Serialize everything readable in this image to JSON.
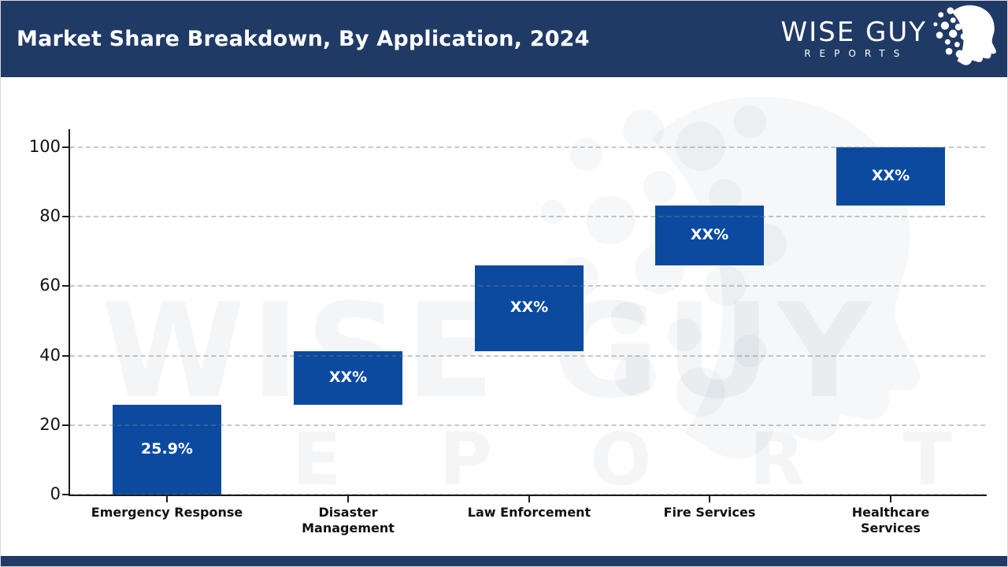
{
  "header": {
    "title": "Market Share Breakdown, By Application, 2024",
    "logo": {
      "line1": "WISE GUY",
      "line2": "REPORTS"
    }
  },
  "watermark": {
    "line1": "WISE GUY",
    "line2": "R E P O R T S"
  },
  "colors": {
    "header_bg": "#203a66",
    "bar": "#0c4aa0",
    "axis": "#1a1a1a",
    "bar_label_text": "#ffffff"
  },
  "chart_data": {
    "type": "bar",
    "subtype": "waterfall-floating-bars",
    "title": "Market Share Breakdown, By Application, 2024",
    "xlabel": "",
    "ylabel": "",
    "ylim": [
      0,
      105
    ],
    "yticks": [
      0,
      20,
      40,
      60,
      80,
      100
    ],
    "grid": "horizontal-dashed",
    "legend": "none",
    "bar_color": "#0c4aa0",
    "categories": [
      "Emergency Response",
      "Disaster Management",
      "Law Enforcement",
      "Fire Services",
      "Healthcare Services"
    ],
    "category_label_lines": [
      [
        "Emergency Response"
      ],
      [
        "Disaster",
        "Management"
      ],
      [
        "Law Enforcement"
      ],
      [
        "Fire Services"
      ],
      [
        "Healthcare",
        "Services"
      ]
    ],
    "segments": [
      {
        "category": "Emergency Response",
        "start": 0,
        "end": 25.9,
        "label": "25.9%"
      },
      {
        "category": "Disaster Management",
        "start": 25.9,
        "end": 41.3,
        "label": "XX%"
      },
      {
        "category": "Law Enforcement",
        "start": 41.3,
        "end": 66.0,
        "label": "XX%"
      },
      {
        "category": "Fire Services",
        "start": 66.0,
        "end": 83.2,
        "label": "XX%"
      },
      {
        "category": "Healthcare Services",
        "start": 83.2,
        "end": 100.0,
        "label": "XX%"
      }
    ]
  }
}
